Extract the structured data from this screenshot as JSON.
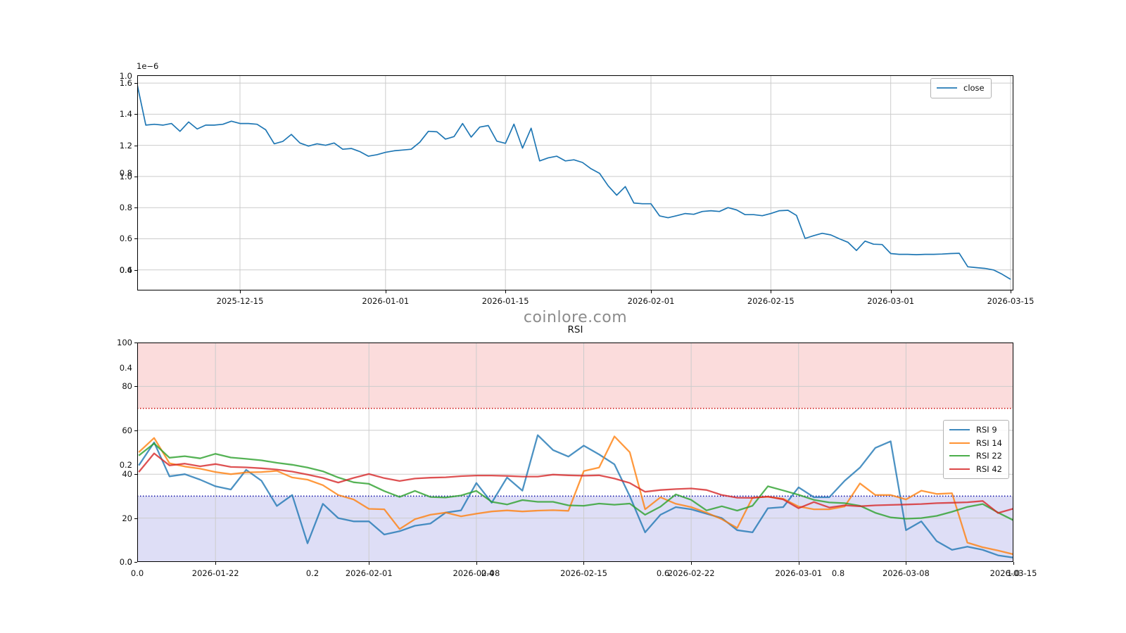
{
  "watermark": "coinlore.com",
  "rsi_title": "RSI",
  "overlay_axis": {
    "x_tick_labels": [
      "0.0",
      "0.2",
      "0.4",
      "0.6",
      "0.8",
      "1.0"
    ],
    "y_tick_labels": [
      "1.0",
      "0.8",
      "0.6",
      "0.4",
      "0.2",
      "0.0"
    ]
  },
  "chart_data": [
    {
      "id": "price",
      "type": "line",
      "y_offset_label": "1e−6",
      "ylim": [
        0.268,
        1.65
      ],
      "y_ticks": [
        0.4,
        0.6,
        0.8,
        1.0,
        1.2,
        1.4,
        1.6
      ],
      "y_tick_labels": [
        "0.4",
        "0.6",
        "0.8",
        "1.0",
        "1.2",
        "1.4",
        "1.6"
      ],
      "x_tick_labels": [
        "2025-12-15",
        "2026-01-01",
        "2026-01-15",
        "2026-02-01",
        "2026-02-15",
        "2026-03-01",
        "2026-03-15"
      ],
      "grid": true,
      "legend_position": "upper right",
      "series": [
        {
          "name": "close",
          "color": "#1f77b4",
          "start_date": "2025-12-03",
          "values_1e6": [
            1.59,
            1.33,
            1.335,
            1.33,
            1.34,
            1.29,
            1.35,
            1.305,
            1.33,
            1.33,
            1.335,
            1.355,
            1.34,
            1.34,
            1.335,
            1.3,
            1.21,
            1.225,
            1.27,
            1.215,
            1.195,
            1.21,
            1.2,
            1.215,
            1.175,
            1.18,
            1.16,
            1.13,
            1.14,
            1.155,
            1.165,
            1.17,
            1.175,
            1.22,
            1.29,
            1.287,
            1.24,
            1.256,
            1.34,
            1.253,
            1.317,
            1.327,
            1.227,
            1.213,
            1.336,
            1.182,
            1.31,
            1.1,
            1.12,
            1.13,
            1.1,
            1.107,
            1.09,
            1.05,
            1.02,
            0.94,
            0.88,
            0.935,
            0.83,
            0.825,
            0.825,
            0.747,
            0.735,
            0.748,
            0.762,
            0.757,
            0.775,
            0.78,
            0.775,
            0.8,
            0.785,
            0.755,
            0.755,
            0.748,
            0.762,
            0.78,
            0.783,
            0.75,
            0.602,
            0.62,
            0.635,
            0.625,
            0.6,
            0.578,
            0.525,
            0.585,
            0.565,
            0.563,
            0.505,
            0.5,
            0.5,
            0.498,
            0.5,
            0.5,
            0.502,
            0.505,
            0.507,
            0.42,
            0.415,
            0.41,
            0.4,
            0.373,
            0.34
          ]
        }
      ]
    },
    {
      "id": "rsi",
      "type": "line",
      "title": "RSI",
      "ylim": [
        0,
        100
      ],
      "y_ticks": [
        0,
        20,
        40,
        60,
        80,
        100
      ],
      "y_tick_labels": [
        "0",
        "20",
        "40",
        "60",
        "80",
        "100"
      ],
      "x_tick_labels": [
        "2026-01-22",
        "2026-02-01",
        "2026-02-08",
        "2026-02-15",
        "2026-02-22",
        "2026-03-01",
        "2026-03-08",
        "2026-03-15"
      ],
      "grid": true,
      "overbought_level": 70,
      "oversold_level": 30,
      "bands": [
        {
          "from": 70,
          "to": 100,
          "color": "#fbdcdc",
          "name": "overbought-zone"
        },
        {
          "from": 0,
          "to": 30,
          "color": "#dedef6",
          "name": "oversold-zone"
        }
      ],
      "hlines": [
        {
          "y": 70,
          "color": "#cc0000",
          "style": "dotted"
        },
        {
          "y": 30,
          "color": "#0000a0",
          "style": "dotted"
        }
      ],
      "legend_position": "right",
      "series": [
        {
          "name": "RSI 9",
          "color": "#1f77b4",
          "start_date": "2026-01-17",
          "values": [
            44,
            54.5,
            39,
            40,
            37.5,
            34.5,
            33,
            42,
            37,
            25.5,
            30.5,
            8.5,
            26.5,
            20,
            18.5,
            18.5,
            12.5,
            14,
            16.5,
            17.5,
            22.5,
            23.5,
            36,
            27,
            38.5,
            32.5,
            57.8,
            51,
            48,
            53,
            49,
            44.5,
            30,
            13.5,
            21.5,
            25,
            24,
            22,
            20,
            14.5,
            13.5,
            24.5,
            25,
            34,
            29.5,
            29.5,
            37,
            43,
            52,
            55,
            14.5,
            18.5,
            9.5,
            5.5,
            7,
            5.5,
            3,
            2
          ]
        },
        {
          "name": "RSI 14",
          "color": "#ff7f0e",
          "start_date": "2026-01-17",
          "values": [
            50,
            56.5,
            45,
            43.5,
            42.5,
            41,
            40,
            40.8,
            41,
            41.5,
            38.5,
            37.5,
            35,
            30.5,
            28.5,
            24.2,
            24,
            15,
            19.5,
            21.5,
            22.5,
            20.8,
            22,
            23,
            23.5,
            23,
            23.4,
            23.6,
            23.3,
            41.4,
            43,
            57.2,
            50,
            24,
            29.5,
            26.5,
            25,
            22.5,
            19.5,
            15.5,
            29.3,
            29.7,
            28.8,
            25.3,
            24,
            24,
            25.3,
            35.8,
            30.5,
            30.5,
            28.5,
            32.5,
            31,
            31.3,
            8.8,
            6.7,
            5.2,
            3.5
          ]
        },
        {
          "name": "RSI 22",
          "color": "#2ca02c",
          "start_date": "2026-01-17",
          "values": [
            48.5,
            54,
            47.5,
            48.2,
            47.2,
            49.3,
            47.6,
            47,
            46.3,
            45.2,
            44.3,
            43,
            41.3,
            38.5,
            36.3,
            35.6,
            32.3,
            29.6,
            32.4,
            29.6,
            29.4,
            30.3,
            32.4,
            27.4,
            26.2,
            28.2,
            27.4,
            27.4,
            25.8,
            25.6,
            26.6,
            26.1,
            26.6,
            21.5,
            25.2,
            30.8,
            28.3,
            23.5,
            25.4,
            23.4,
            25.6,
            34.5,
            32.6,
            30.6,
            28.3,
            27.1,
            26.8,
            25.6,
            22.4,
            20.3,
            19.7,
            20,
            21,
            22.9,
            25.1,
            26.4,
            22.5,
            19
          ]
        },
        {
          "name": "RSI 42",
          "color": "#d62728",
          "start_date": "2026-01-17",
          "values": [
            41,
            49.5,
            44,
            44.8,
            43.6,
            44.6,
            43.3,
            43.1,
            42.7,
            42.1,
            41.2,
            39.8,
            38.3,
            36.2,
            38.3,
            40.1,
            38.2,
            36.9,
            38,
            38.4,
            38.6,
            39.1,
            39.4,
            39.4,
            39.2,
            38.9,
            38.9,
            39.8,
            39.5,
            39.3,
            39.5,
            38,
            36,
            32,
            32.8,
            33.2,
            33.5,
            32.8,
            30.5,
            29.3,
            29.2,
            29.8,
            28.5,
            24.5,
            27.3,
            24.8,
            25.8,
            25.4,
            25.8,
            26,
            26.2,
            26.4,
            26.8,
            27,
            27.2,
            27.8,
            22.3,
            24.3
          ]
        }
      ]
    }
  ]
}
